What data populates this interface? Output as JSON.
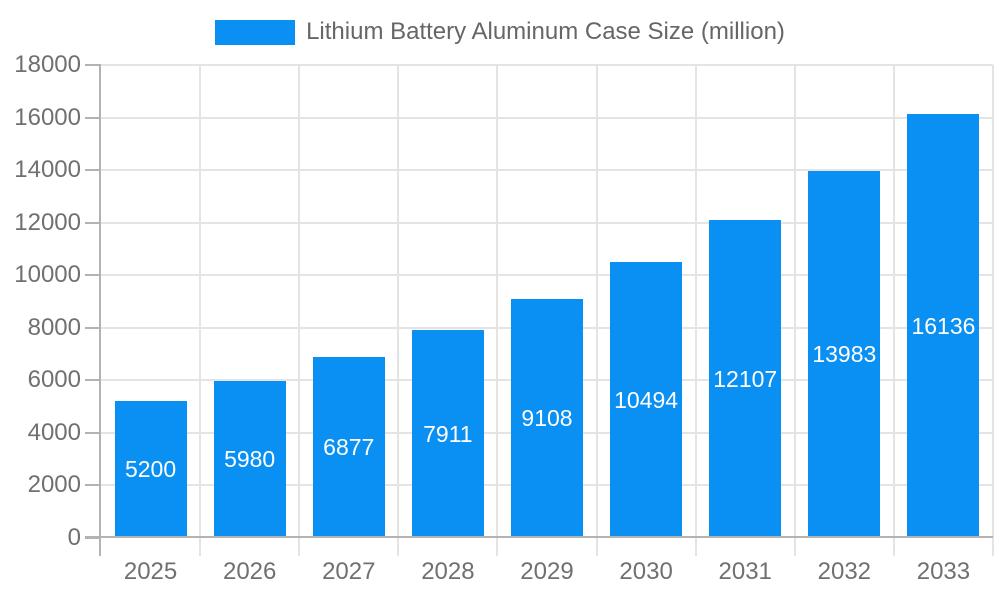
{
  "chart_data": {
    "type": "bar",
    "title": "Lithium Battery Aluminum Case Size (million)",
    "legend": "Lithium Battery Aluminum Case Size (million)",
    "legend_position": "top-center",
    "categories": [
      "2025",
      "2026",
      "2027",
      "2028",
      "2029",
      "2030",
      "2031",
      "2032",
      "2033"
    ],
    "values": [
      5200,
      5980,
      6877,
      7911,
      9108,
      10494,
      12107,
      13983,
      16136
    ],
    "xlabel": "",
    "ylabel": "",
    "ylim": [
      0,
      18000
    ],
    "yticks": [
      0,
      2000,
      4000,
      6000,
      8000,
      10000,
      12000,
      14000,
      16000,
      18000
    ],
    "grid": true,
    "colors": {
      "bar": "#0a8ff2",
      "value_label": "#ffffff",
      "axis_text": "#707070",
      "legend_text": "#666666",
      "gridline": "#e4e4e4",
      "axis_line": "#b3b3b3",
      "background": "#ffffff"
    }
  }
}
